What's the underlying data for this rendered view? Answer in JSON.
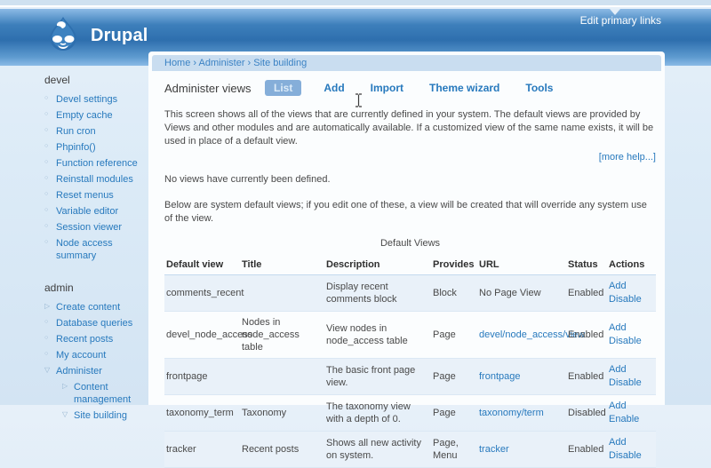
{
  "header": {
    "logo_text": "Drupal",
    "edit_primary_links": "Edit primary links"
  },
  "breadcrumb": {
    "separator": "›",
    "items": [
      "Home",
      "Administer",
      "Site building"
    ]
  },
  "sidebar": {
    "sections": [
      {
        "title": "devel",
        "items": [
          {
            "label": "Devel settings",
            "bullet": "circle"
          },
          {
            "label": "Empty cache",
            "bullet": "circle"
          },
          {
            "label": "Run cron",
            "bullet": "circle"
          },
          {
            "label": "Phpinfo()",
            "bullet": "circle"
          },
          {
            "label": "Function reference",
            "bullet": "circle"
          },
          {
            "label": "Reinstall modules",
            "bullet": "circle"
          },
          {
            "label": "Reset menus",
            "bullet": "circle"
          },
          {
            "label": "Variable editor",
            "bullet": "circle"
          },
          {
            "label": "Session viewer",
            "bullet": "circle"
          },
          {
            "label": "Node access summary",
            "bullet": "circle"
          }
        ]
      },
      {
        "title": "admin",
        "items": [
          {
            "label": "Create content",
            "bullet": "collapsed"
          },
          {
            "label": "Database queries",
            "bullet": "circle"
          },
          {
            "label": "Recent posts",
            "bullet": "circle"
          },
          {
            "label": "My account",
            "bullet": "circle"
          },
          {
            "label": "Administer",
            "bullet": "expanded",
            "children": [
              {
                "label": "Content management",
                "bullet": "collapsed"
              },
              {
                "label": "Site building",
                "bullet": "expanded"
              }
            ]
          }
        ]
      }
    ]
  },
  "page": {
    "title": "Administer views",
    "tabs": [
      {
        "label": "List",
        "active": true
      },
      {
        "label": "Add",
        "active": false
      },
      {
        "label": "Import",
        "active": false
      },
      {
        "label": "Theme wizard",
        "active": false
      },
      {
        "label": "Tools",
        "active": false
      }
    ],
    "intro": "This screen shows all of the views that are currently defined in your system. The default views are provided by Views and other modules and are automatically available. If a customized view of the same name exists, it will be used in place of a default view.",
    "more_help": "[more help...]",
    "no_views": "No views have currently been defined.",
    "below_text": "Below are system default views; if you edit one of these, a view will be created that will override any system use of the view.",
    "table": {
      "caption": "Default Views",
      "columns": [
        "Default view",
        "Title",
        "Description",
        "Provides",
        "URL",
        "Status",
        "Actions"
      ],
      "rows": [
        {
          "name": "comments_recent",
          "title": "",
          "description": "Display recent comments block",
          "provides": "Block",
          "url": "No Page View",
          "url_is_link": false,
          "status": "Enabled",
          "actions": [
            "Add",
            "Disable"
          ]
        },
        {
          "name": "devel_node_access",
          "title": "Nodes in node_access table",
          "description": "View nodes in node_access table",
          "provides": "Page",
          "url": "devel/node_access/view",
          "url_is_link": true,
          "status": "Enabled",
          "actions": [
            "Add",
            "Disable"
          ]
        },
        {
          "name": "frontpage",
          "title": "",
          "description": "The basic front page view.",
          "provides": "Page",
          "url": "frontpage",
          "url_is_link": true,
          "status": "Enabled",
          "actions": [
            "Add",
            "Disable"
          ]
        },
        {
          "name": "taxonomy_term",
          "title": "Taxonomy",
          "description": "The taxonomy view with a depth of 0.",
          "provides": "Page",
          "url": "taxonomy/term",
          "url_is_link": true,
          "status": "Disabled",
          "actions": [
            "Add",
            "Enable"
          ]
        },
        {
          "name": "tracker",
          "title": "Recent posts",
          "description": "Shows all new activity on system.",
          "provides": "Page, Menu",
          "url": "tracker",
          "url_is_link": true,
          "status": "Enabled",
          "actions": [
            "Add",
            "Disable"
          ]
        }
      ]
    }
  },
  "colors": {
    "header_blue": "#2e6fae",
    "top_strip": "#cfe1f0",
    "link_blue": "#2779bd",
    "active_tab_bg": "#85aed9",
    "active_tab_text": "#dcebf8",
    "breadcrumb_bg": "#c9ddf0",
    "row_stripe": "#e9f1f9",
    "page_bg": "#d9e8f5",
    "content_bg": "#fbfdfe"
  }
}
